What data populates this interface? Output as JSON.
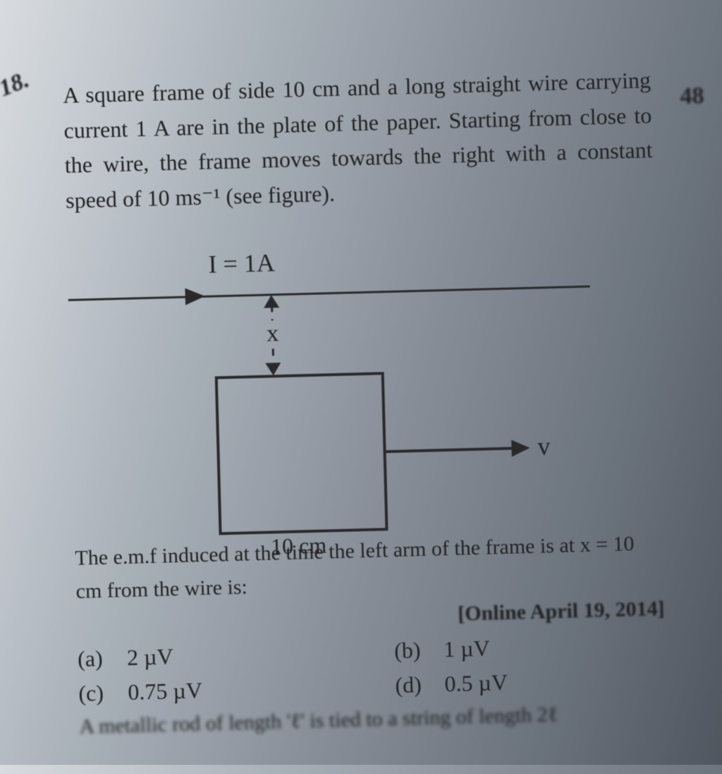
{
  "question_number_mark": "18.",
  "right_margin_num": "48",
  "question_text": "A square frame of side 10 cm and a long straight wire carrying current 1 A are in the plate of the paper. Starting from close to the wire, the frame moves towards the right with a constant speed of 10 ms⁻¹ (see figure).",
  "figure": {
    "current_label": "I = 1A",
    "gap_label": "x",
    "side_label": "10 cm",
    "velocity_label": "v"
  },
  "prompt_text": "The e.m.f induced at the time the left arm of the frame is at x = 10 cm from the wire is:",
  "source": "[Online April 19, 2014]",
  "options": {
    "a": {
      "tag": "(a)",
      "value": "2 µV"
    },
    "b": {
      "tag": "(b)",
      "value": "1 µV"
    },
    "c": {
      "tag": "(c)",
      "value": "0.75 µV"
    },
    "d": {
      "tag": "(d)",
      "value": "0.5 µV"
    }
  },
  "bottom_blur": "A metallic rod of length 'ℓ' is tied to a string of length 2ℓ"
}
